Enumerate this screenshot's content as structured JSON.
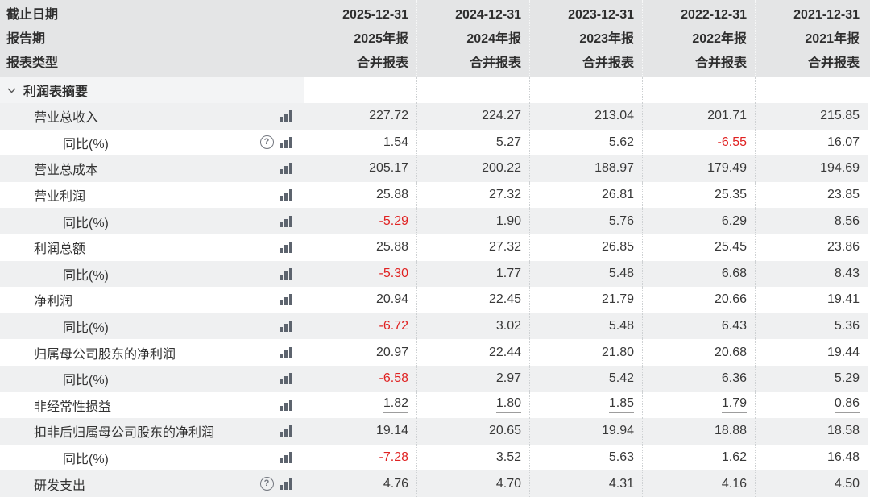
{
  "header": {
    "field_labels": {
      "deadline": "截止日期",
      "report_period": "报告期",
      "report_type": "报表类型"
    },
    "columns": [
      {
        "date": "2025-12-31",
        "period": "2025年报",
        "type": "合并报表"
      },
      {
        "date": "2024-12-31",
        "period": "2024年报",
        "type": "合并报表"
      },
      {
        "date": "2023-12-31",
        "period": "2023年报",
        "type": "合并报表"
      },
      {
        "date": "2022-12-31",
        "period": "2022年报",
        "type": "合并报表"
      },
      {
        "date": "2021-12-31",
        "period": "2021年报",
        "type": "合并报表"
      }
    ]
  },
  "section": {
    "label": "利润表摘要",
    "chevron_icon": "chevron-down"
  },
  "rows": [
    {
      "label": "营业总收入",
      "indent": 1,
      "icons": [
        "bar-chart"
      ],
      "values": [
        "227.72",
        "224.27",
        "213.04",
        "201.71",
        "215.85"
      ]
    },
    {
      "label": "同比(%)",
      "indent": 2,
      "icons": [
        "help",
        "bar-chart"
      ],
      "values": [
        "1.54",
        "5.27",
        "5.62",
        "-6.55",
        "16.07"
      ]
    },
    {
      "label": "营业总成本",
      "indent": 1,
      "icons": [
        "bar-chart"
      ],
      "values": [
        "205.17",
        "200.22",
        "188.97",
        "179.49",
        "194.69"
      ]
    },
    {
      "label": "营业利润",
      "indent": 1,
      "icons": [
        "bar-chart"
      ],
      "values": [
        "25.88",
        "27.32",
        "26.81",
        "25.35",
        "23.85"
      ]
    },
    {
      "label": "同比(%)",
      "indent": 2,
      "icons": [
        "bar-chart"
      ],
      "values": [
        "-5.29",
        "1.90",
        "5.76",
        "6.29",
        "8.56"
      ]
    },
    {
      "label": "利润总额",
      "indent": 1,
      "icons": [
        "bar-chart"
      ],
      "values": [
        "25.88",
        "27.32",
        "26.85",
        "25.45",
        "23.86"
      ]
    },
    {
      "label": "同比(%)",
      "indent": 2,
      "icons": [
        "bar-chart"
      ],
      "values": [
        "-5.30",
        "1.77",
        "5.48",
        "6.68",
        "8.43"
      ]
    },
    {
      "label": "净利润",
      "indent": 1,
      "icons": [
        "bar-chart"
      ],
      "values": [
        "20.94",
        "22.45",
        "21.79",
        "20.66",
        "19.41"
      ]
    },
    {
      "label": "同比(%)",
      "indent": 2,
      "icons": [
        "bar-chart"
      ],
      "values": [
        "-6.72",
        "3.02",
        "5.48",
        "6.43",
        "5.36"
      ]
    },
    {
      "label": "归属母公司股东的净利润",
      "indent": 1,
      "icons": [
        "bar-chart"
      ],
      "values": [
        "20.97",
        "22.44",
        "21.80",
        "20.68",
        "19.44"
      ]
    },
    {
      "label": "同比(%)",
      "indent": 2,
      "icons": [
        "bar-chart"
      ],
      "values": [
        "-6.58",
        "2.97",
        "5.42",
        "6.36",
        "5.29"
      ]
    },
    {
      "label": "非经常性损益",
      "indent": 1,
      "icons": [
        "bar-chart"
      ],
      "underline": true,
      "values": [
        "1.82",
        "1.80",
        "1.85",
        "1.79",
        "0.86"
      ]
    },
    {
      "label": "扣非后归属母公司股东的净利润",
      "indent": 1,
      "icons": [
        "bar-chart"
      ],
      "values": [
        "19.14",
        "20.65",
        "19.94",
        "18.88",
        "18.58"
      ]
    },
    {
      "label": "同比(%)",
      "indent": 2,
      "icons": [
        "bar-chart"
      ],
      "values": [
        "-7.28",
        "3.52",
        "5.63",
        "1.62",
        "16.48"
      ]
    },
    {
      "label": "研发支出",
      "indent": 1,
      "icons": [
        "help",
        "bar-chart"
      ],
      "values": [
        "4.76",
        "4.70",
        "4.31",
        "4.16",
        "4.50"
      ]
    }
  ],
  "colors": {
    "header_bg": "#e4e5e6",
    "shaded_row_bg": "#eff0f1",
    "section_label_bg": "#f3f4f5",
    "negative_value": "#e02222",
    "text": "#333333",
    "icon": "#5d646e"
  }
}
